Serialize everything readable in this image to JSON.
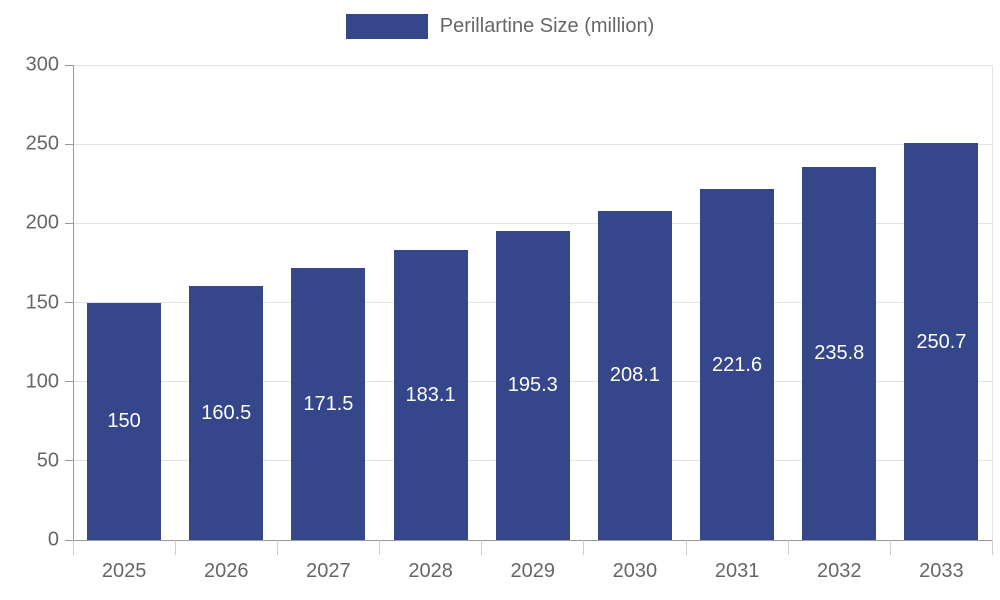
{
  "chart_data": {
    "type": "bar",
    "title": "Perillartine Size (million)",
    "legend": [
      "Perillartine Size (million)"
    ],
    "legend_position": "top-center",
    "categories": [
      "2025",
      "2026",
      "2027",
      "2028",
      "2029",
      "2030",
      "2031",
      "2032",
      "2033"
    ],
    "values": [
      150,
      160.5,
      171.5,
      183.1,
      195.3,
      208.1,
      221.6,
      235.8,
      250.7
    ],
    "value_labels": [
      "150",
      "160.5",
      "171.5",
      "183.1",
      "195.3",
      "208.1",
      "221.6",
      "235.8",
      "250.7"
    ],
    "xlabel": "",
    "ylabel": "",
    "ylim": [
      0,
      300
    ],
    "yticks": [
      0,
      50,
      100,
      150,
      200,
      250,
      300
    ],
    "grid": true,
    "colors": {
      "bar_fill": "#35478a",
      "bar_label": "#ffffff",
      "axis_text": "#666666",
      "legend_text": "#666666",
      "gridline": "#e3e3e3",
      "axis_line": "#999999",
      "category_tick": "#cccccc"
    }
  }
}
